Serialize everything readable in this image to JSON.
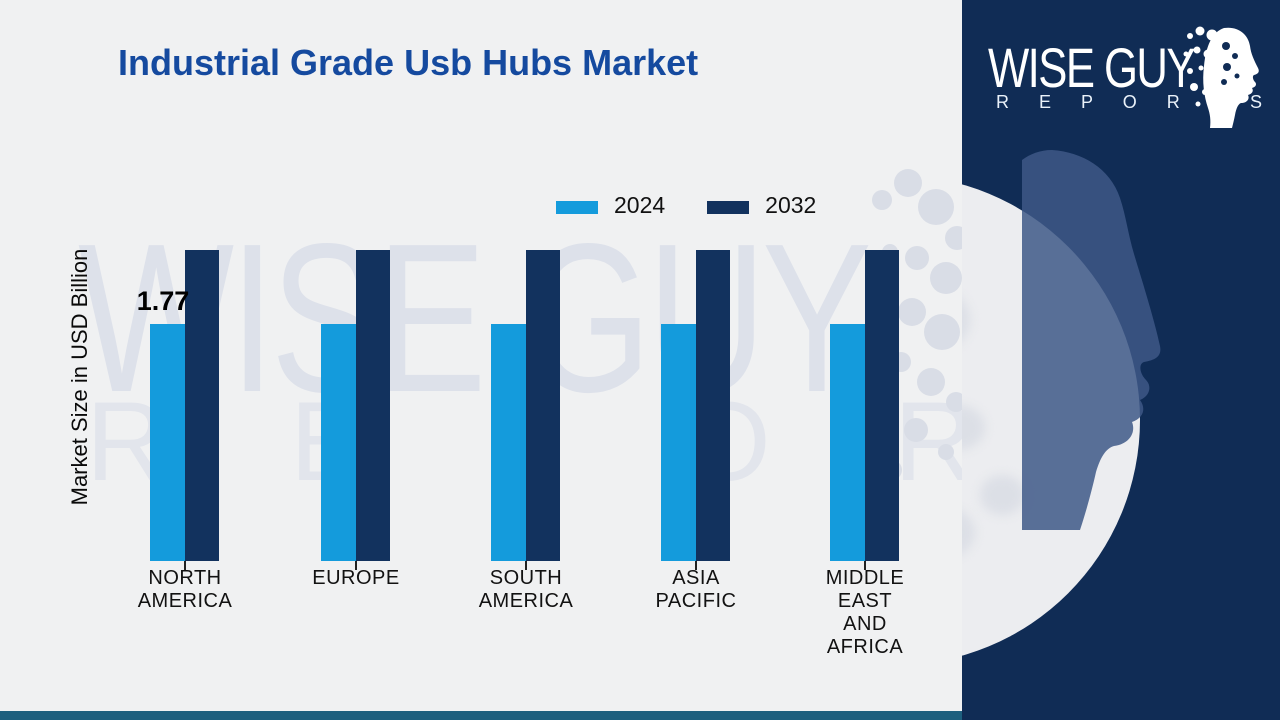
{
  "header": {
    "title": "Industrial Grade Usb Hubs Market"
  },
  "brand": {
    "name": "WISE GUY",
    "sub": "R E P O R T S"
  },
  "watermark": {
    "line1": "WISE GUY",
    "line2": "R E P O R T S"
  },
  "chart": {
    "y_axis_label": "Market Size in USD Billion",
    "legend": [
      {
        "label": "2024",
        "color": "#149bdc"
      },
      {
        "label": "2032",
        "color": "#12325e"
      }
    ]
  },
  "chart_data": {
    "type": "bar",
    "title": "Industrial Grade Usb Hubs Market",
    "xlabel": "",
    "ylabel": "Market Size in USD Billion",
    "categories": [
      "NORTH AMERICA",
      "EUROPE",
      "SOUTH AMERICA",
      "ASIA PACIFIC",
      "MIDDLE EAST AND AFRICA"
    ],
    "category_lines": [
      [
        "NORTH",
        "AMERICA"
      ],
      [
        "EUROPE"
      ],
      [
        "SOUTH",
        "AMERICA"
      ],
      [
        "ASIA",
        "PACIFIC"
      ],
      [
        "MIDDLE",
        "EAST",
        "AND",
        "AFRICA"
      ]
    ],
    "series": [
      {
        "name": "2024",
        "color": "#149bdc",
        "values": [
          1.77,
          1.77,
          1.77,
          1.77,
          1.77
        ]
      },
      {
        "name": "2032",
        "color": "#12325e",
        "values": [
          2.32,
          2.32,
          2.32,
          2.32,
          2.32
        ]
      }
    ],
    "data_labels": [
      {
        "series": "2024",
        "category": "NORTH AMERICA",
        "text": "1.77"
      }
    ],
    "legend_position": "top",
    "grid": false,
    "ylim": [
      0,
      2.6
    ]
  },
  "colors": {
    "background": "#f0f1f2",
    "title": "#154a9f",
    "bar_2024": "#149bdc",
    "bar_2032": "#12325e",
    "panel_navy": "#102c55",
    "footer_teal": "#1d5f7e",
    "watermark": "#dde1ea"
  }
}
